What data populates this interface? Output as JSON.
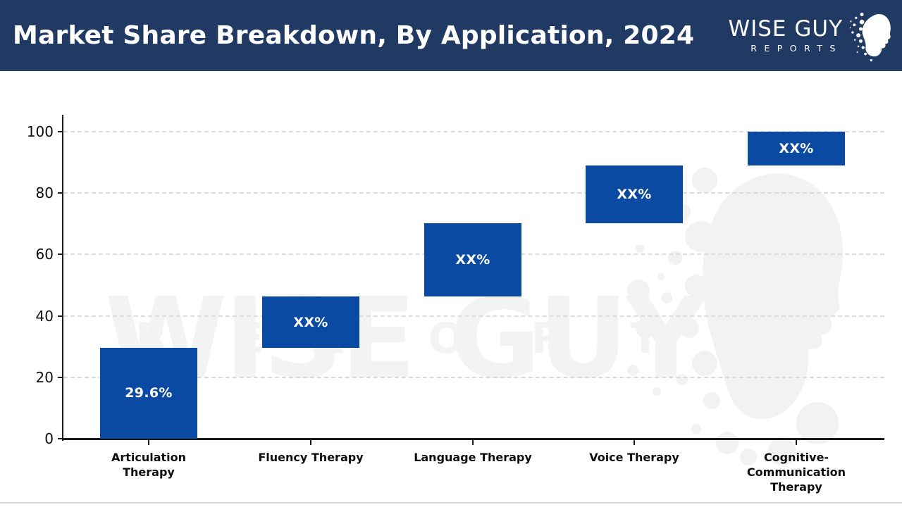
{
  "header": {
    "title": "Market Share Breakdown, By Application, 2024",
    "logo": {
      "brand_top": "WISE GUY",
      "brand_bottom": "REPORTS"
    }
  },
  "watermark": {
    "brand_top": "WISE GUY",
    "brand_bottom": "R E P O R T S"
  },
  "chart_data": {
    "type": "bar",
    "variant": "waterfall",
    "title": "Market Share Breakdown, By Application, 2024",
    "categories": [
      "Articulation Therapy",
      "Fluency Therapy",
      "Language Therapy",
      "Voice Therapy",
      "Cognitive-Communication Therapy"
    ],
    "category_label_lines": [
      [
        "Articulation",
        "Therapy"
      ],
      [
        "Fluency Therapy"
      ],
      [
        "Language Therapy"
      ],
      [
        "Voice Therapy"
      ],
      [
        "Cognitive-",
        "Communication",
        "Therapy"
      ]
    ],
    "segments": [
      {
        "category": "Articulation Therapy",
        "start": 0,
        "end": 29.6,
        "label": "29.6%"
      },
      {
        "category": "Fluency Therapy",
        "start": 29.6,
        "end": 46.3,
        "label": "XX%"
      },
      {
        "category": "Language Therapy",
        "start": 46.3,
        "end": 70.1,
        "label": "XX%"
      },
      {
        "category": "Voice Therapy",
        "start": 70.1,
        "end": 88.9,
        "label": "XX%"
      },
      {
        "category": "Cognitive-Communication Therapy",
        "start": 88.9,
        "end": 100,
        "label": "XX%"
      }
    ],
    "xlabel": "",
    "ylabel": "",
    "yticks": [
      0,
      20,
      40,
      60,
      80,
      100
    ],
    "ylim": [
      0,
      105.5
    ],
    "grid": "horizontal-dashed",
    "legend": "none",
    "colors": {
      "bar": "#0b4aa2",
      "bar_label": "#ffffff",
      "grid": "#dadada",
      "axis": "#1a1a1a",
      "tick_label": "#0d0d0d",
      "header_bg": "#213a64",
      "watermark": "#f2f2f2"
    }
  }
}
